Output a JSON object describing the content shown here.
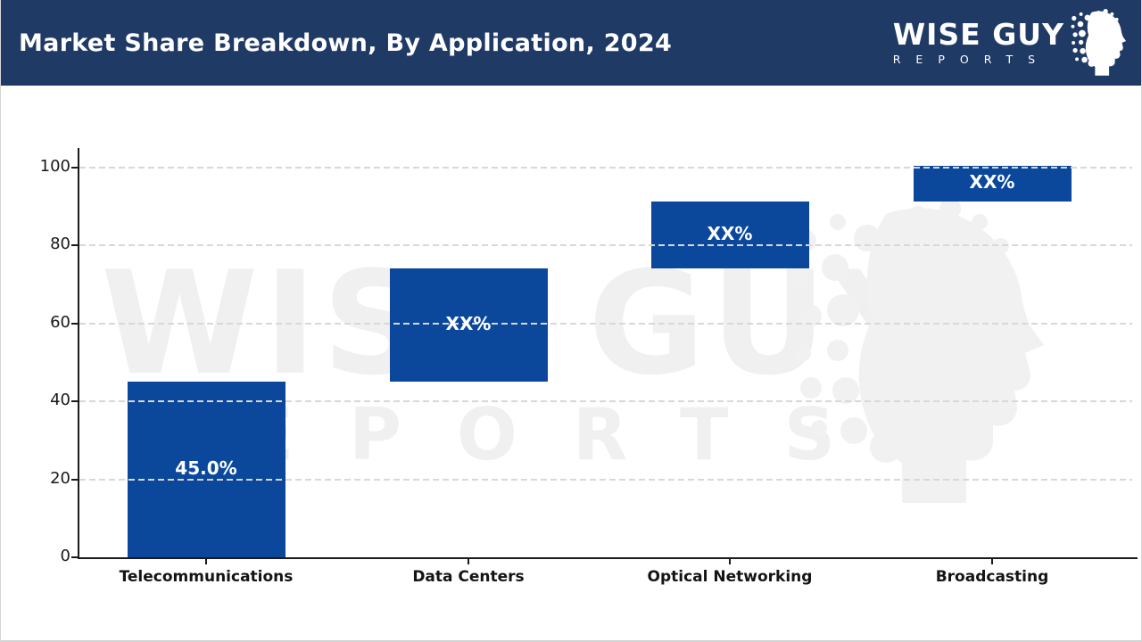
{
  "page": {
    "background": "#ffffff",
    "border_color": "#d6d6d6"
  },
  "header": {
    "bg": "#203a66",
    "title": "Market Share Breakdown, By Application, 2024",
    "title_color": "#ffffff",
    "logo": {
      "wordmark": "WISE GUY",
      "subtext": "REPORTS"
    }
  },
  "watermark": {
    "wordmark": "WISE GUY",
    "subtext": "REPORTS",
    "color": "#f0f0f0"
  },
  "chart_data": {
    "type": "bar",
    "variant": "waterfall",
    "title": "Market Share Breakdown, By Application, 2024",
    "categories": [
      "Telecommunications",
      "Data Centers",
      "Optical Networking",
      "Broadcasting"
    ],
    "bar_labels": [
      "45.0%",
      "XX%",
      "XX%",
      "XX%"
    ],
    "bar_bounds": [
      [
        0,
        45
      ],
      [
        45,
        74
      ],
      [
        74,
        91.2
      ],
      [
        91.2,
        100.3
      ]
    ],
    "approx_deltas": [
      45,
      29,
      17.2,
      9.1
    ],
    "yticks": [
      0,
      20,
      40,
      60,
      80,
      100
    ],
    "ytick_labels": [
      "0",
      "20",
      "40",
      "60",
      "80",
      "100"
    ],
    "ylim": [
      0,
      105
    ],
    "xlabel": "",
    "ylabel": "",
    "grid": "horizontal-dashed",
    "grid_color": "#d8d8d8",
    "legend": null,
    "bar_color": "#0b489c",
    "bar_label_color": "#ffffff",
    "axis_color": "#1a1a1a"
  }
}
